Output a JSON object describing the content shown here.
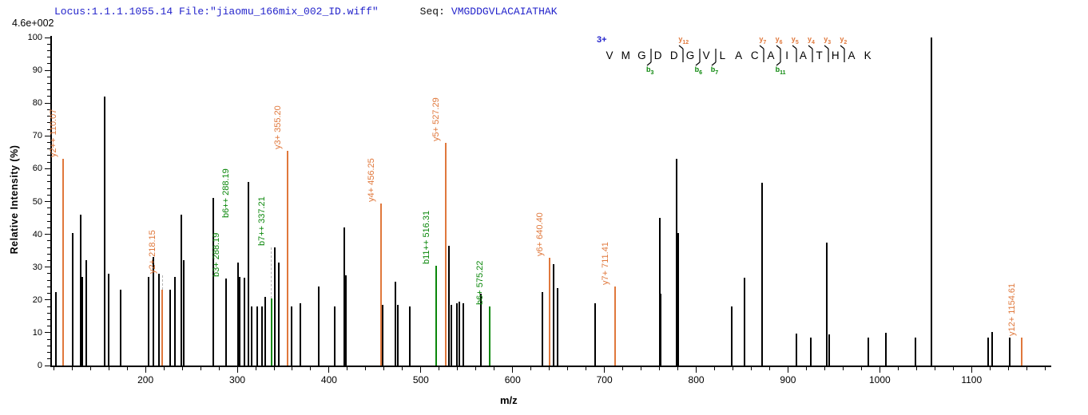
{
  "header": {
    "locus_file": "Locus:1.1.1.1055.14 File:\"jiaomu_166mix_002_ID.wiff\"",
    "seq_label": "Seq:",
    "seq_value": "VMGDDGVLACAIATHAK",
    "max_intensity": "4.6e+002"
  },
  "colors": {
    "y_ion": "#e0783c",
    "b_ion": "#0a870a",
    "peak": "#000000",
    "header_blue": "#2323cb",
    "leader": "#b3b3b3"
  },
  "sequence_panel": {
    "charge": "3+",
    "residues": [
      "V",
      "M",
      "G",
      "D",
      "D",
      "G",
      "V",
      "L",
      "A",
      "C",
      "A",
      "I",
      "A",
      "T",
      "H",
      "A",
      "K"
    ],
    "markers": [
      {
        "after": 3,
        "b": 3
      },
      {
        "after": 5,
        "y": 12
      },
      {
        "after": 6,
        "b": 6
      },
      {
        "after": 7,
        "b": 7
      },
      {
        "after": 10,
        "y": 7
      },
      {
        "after": 11,
        "y": 6,
        "b": 11
      },
      {
        "after": 12,
        "y": 5
      },
      {
        "after": 13,
        "y": 4
      },
      {
        "after": 14,
        "y": 3
      },
      {
        "after": 15,
        "y": 2
      }
    ]
  },
  "chart_data": {
    "type": "bar",
    "subtype": "mass-spectrum-stick-plot",
    "title": "",
    "xlabel": "m/z",
    "ylabel": "Relative  Intensity (%)",
    "xlim": [
      100,
      1185
    ],
    "ylim": [
      0,
      100
    ],
    "x_major_ticks": [
      200,
      300,
      400,
      500,
      600,
      700,
      800,
      900,
      1000,
      1100
    ],
    "x_minor_step": 20,
    "y_major_ticks": [
      0,
      10,
      20,
      30,
      40,
      50,
      60,
      70,
      80,
      90,
      100
    ],
    "y_minor_step": 2,
    "grid": false,
    "legend": "none",
    "peaks": [
      {
        "mz": 102.0,
        "intensity": 22.5
      },
      {
        "mz": 110.07,
        "intensity": 63,
        "ion": "y",
        "label": "y2++ 110.07"
      },
      {
        "mz": 120.5,
        "intensity": 40.5
      },
      {
        "mz": 129.5,
        "intensity": 46
      },
      {
        "mz": 131.2,
        "intensity": 27
      },
      {
        "mz": 135.5,
        "intensity": 32
      },
      {
        "mz": 155.5,
        "intensity": 82
      },
      {
        "mz": 160.0,
        "intensity": 28
      },
      {
        "mz": 173.0,
        "intensity": 23
      },
      {
        "mz": 203.5,
        "intensity": 27
      },
      {
        "mz": 208.5,
        "intensity": 33
      },
      {
        "mz": 214.5,
        "intensity": 28
      },
      {
        "mz": 218.15,
        "intensity": 23,
        "ion": "y",
        "label": "y2+ 218.15",
        "leader": 18
      },
      {
        "mz": 227.0,
        "intensity": 23
      },
      {
        "mz": 232.0,
        "intensity": 27
      },
      {
        "mz": 239.0,
        "intensity": 46
      },
      {
        "mz": 241.5,
        "intensity": 32
      },
      {
        "mz": 274.0,
        "intensity": 51
      },
      {
        "mz": 288.19,
        "intensity": 26.5,
        "ion": "b",
        "line": "black",
        "label": "b3+ 288.19",
        "label2": "b6++ 288.19",
        "label2_dx": 12,
        "label2_raise": 74
      },
      {
        "mz": 301.0,
        "intensity": 31.5
      },
      {
        "mz": 303.0,
        "intensity": 27
      },
      {
        "mz": 308.0,
        "intensity": 26.8
      },
      {
        "mz": 312.0,
        "intensity": 56
      },
      {
        "mz": 315.5,
        "intensity": 18
      },
      {
        "mz": 322.0,
        "intensity": 18
      },
      {
        "mz": 327.0,
        "intensity": 18
      },
      {
        "mz": 330.5,
        "intensity": 21
      },
      {
        "mz": 337.21,
        "intensity": 20.5,
        "ion": "b",
        "label": "b7++ 337.21",
        "leader": 64
      },
      {
        "mz": 341.0,
        "intensity": 36
      },
      {
        "mz": 345.5,
        "intensity": 31.3
      },
      {
        "mz": 355.2,
        "intensity": 65.5,
        "ion": "y",
        "label": "y3+ 355.20"
      },
      {
        "mz": 359.0,
        "intensity": 18
      },
      {
        "mz": 369.0,
        "intensity": 19
      },
      {
        "mz": 389.0,
        "intensity": 24
      },
      {
        "mz": 406.0,
        "intensity": 18
      },
      {
        "mz": 416.5,
        "intensity": 42
      },
      {
        "mz": 418.5,
        "intensity": 27.5
      },
      {
        "mz": 456.25,
        "intensity": 49.5,
        "ion": "y",
        "label": "y4+ 456.25"
      },
      {
        "mz": 458.5,
        "intensity": 18.5
      },
      {
        "mz": 472.5,
        "intensity": 25.5
      },
      {
        "mz": 474.5,
        "intensity": 18.5
      },
      {
        "mz": 488.0,
        "intensity": 18
      },
      {
        "mz": 516.31,
        "intensity": 30.5,
        "ion": "b",
        "label": "b11++ 516.31"
      },
      {
        "mz": 527.29,
        "intensity": 68,
        "ion": "y",
        "label": "y5+ 527.29"
      },
      {
        "mz": 530.5,
        "intensity": 36.5
      },
      {
        "mz": 533.0,
        "intensity": 18.5
      },
      {
        "mz": 539.5,
        "intensity": 19
      },
      {
        "mz": 542.0,
        "intensity": 19.5
      },
      {
        "mz": 546.0,
        "intensity": 19
      },
      {
        "mz": 565.0,
        "intensity": 22
      },
      {
        "mz": 575.22,
        "intensity": 18,
        "ion": "b",
        "label": "b6+ 575.22"
      },
      {
        "mz": 632.5,
        "intensity": 22.4
      },
      {
        "mz": 640.4,
        "intensity": 32.8,
        "ion": "y",
        "label": "y6+ 640.40"
      },
      {
        "mz": 645.0,
        "intensity": 31
      },
      {
        "mz": 649.0,
        "intensity": 23.6
      },
      {
        "mz": 690.0,
        "intensity": 19
      },
      {
        "mz": 711.41,
        "intensity": 24,
        "ion": "y",
        "label": "y7+ 711.41"
      },
      {
        "mz": 760.0,
        "intensity": 45
      },
      {
        "mz": 761.5,
        "intensity": 22
      },
      {
        "mz": 778.5,
        "intensity": 63
      },
      {
        "mz": 780.0,
        "intensity": 40.5
      },
      {
        "mz": 839.0,
        "intensity": 18
      },
      {
        "mz": 853.0,
        "intensity": 26.7
      },
      {
        "mz": 872.0,
        "intensity": 55.7
      },
      {
        "mz": 909.0,
        "intensity": 9.7
      },
      {
        "mz": 925.0,
        "intensity": 8.5
      },
      {
        "mz": 942.0,
        "intensity": 37.5
      },
      {
        "mz": 944.5,
        "intensity": 9.5
      },
      {
        "mz": 987.5,
        "intensity": 8.5
      },
      {
        "mz": 1007.0,
        "intensity": 10
      },
      {
        "mz": 1039.0,
        "intensity": 8.5
      },
      {
        "mz": 1056.0,
        "intensity": 100
      },
      {
        "mz": 1118.0,
        "intensity": 8.5
      },
      {
        "mz": 1122.5,
        "intensity": 10.3
      },
      {
        "mz": 1141.5,
        "intensity": 8.6
      },
      {
        "mz": 1154.61,
        "intensity": 8.5,
        "ion": "y",
        "label": "y12+ 1154.61"
      }
    ]
  }
}
